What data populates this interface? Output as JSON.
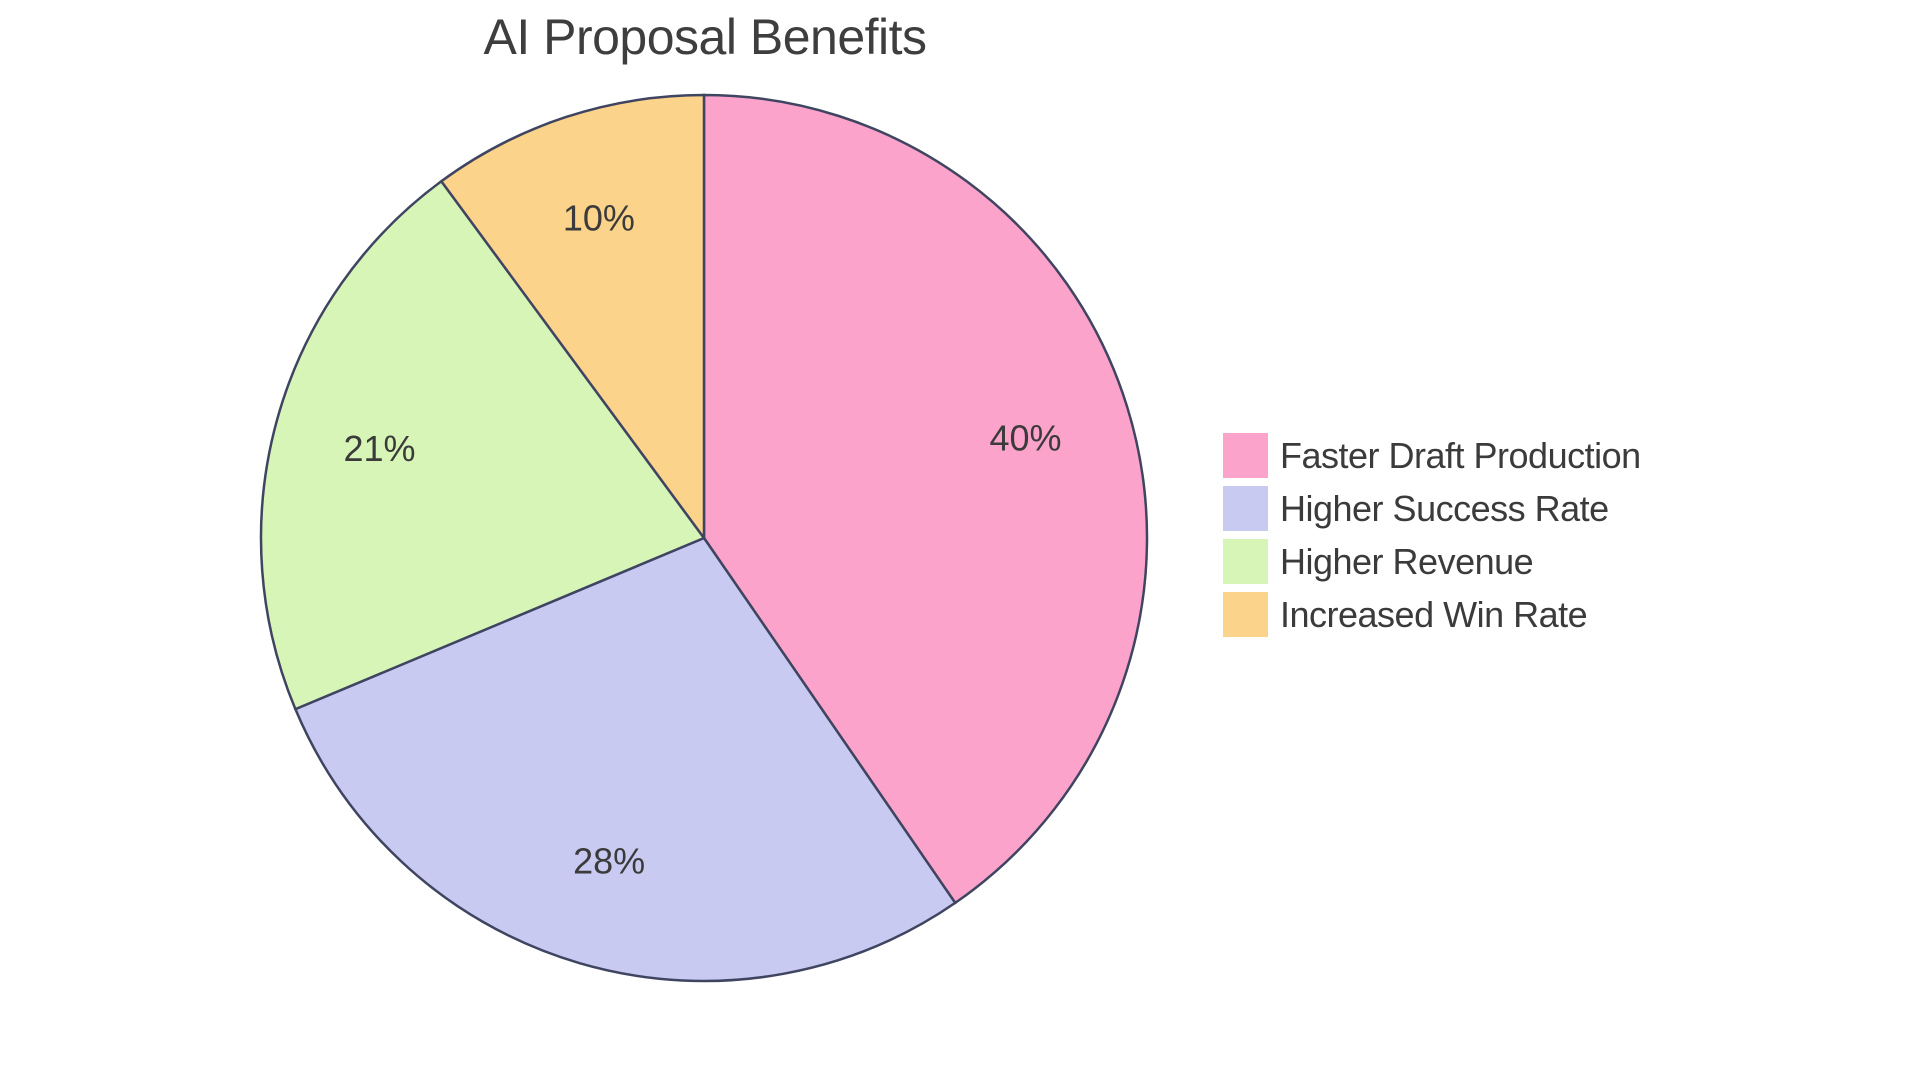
{
  "page": {
    "background": "#FFFFFF"
  },
  "chart_data": {
    "type": "pie",
    "title": "AI Proposal Benefits",
    "start_angle": "12 o'clock",
    "direction": "clockwise",
    "legend_position": "right",
    "slices": [
      {
        "label": "Faster Draft Production",
        "value": 40,
        "pct_label": "40%",
        "color": "#FCA3CB"
      },
      {
        "label": "Higher Success Rate",
        "value": 28,
        "pct_label": "28%",
        "color": "#C9CAF2"
      },
      {
        "label": "Higher Revenue",
        "value": 21,
        "pct_label": "21%",
        "color": "#D8F5B8"
      },
      {
        "label": "Increased Win Rate",
        "value": 10,
        "pct_label": "10%",
        "color": "#FBD38A"
      }
    ],
    "style": {
      "outline_color": "#3F4561",
      "outline_width": 2.5,
      "title_color": "#3E3E3E",
      "label_color": "#3B3B3B"
    }
  }
}
